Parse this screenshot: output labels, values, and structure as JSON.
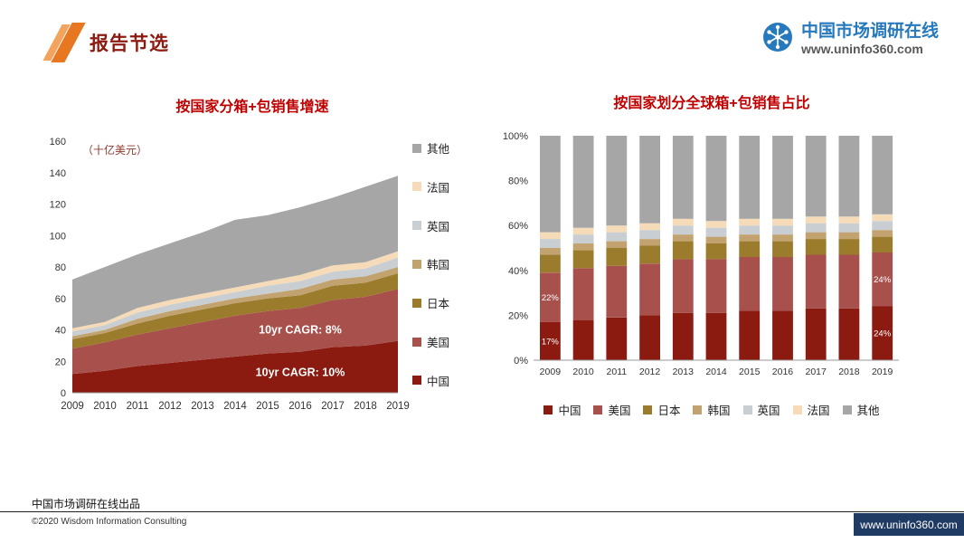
{
  "header": {
    "title": "报告节选",
    "logo_main": "中国市场调研在线",
    "logo_sub": "www.uninfo360.com"
  },
  "footer": {
    "line1": "中国市场调研在线出品",
    "line2": "©2020 Wisdom Information Consulting",
    "badge": "www.uninfo360.com"
  },
  "chart_data": [
    {
      "type": "area",
      "title": "按国家分箱+包销售增速",
      "unit_label": "（十亿美元）",
      "x": [
        "2009",
        "2010",
        "2011",
        "2012",
        "2013",
        "2014",
        "2015",
        "2016",
        "2017",
        "2018",
        "2019"
      ],
      "ylim": [
        0,
        160
      ],
      "yticks": [
        0,
        20,
        40,
        60,
        80,
        100,
        120,
        140,
        160
      ],
      "legend_position": "right",
      "grid": false,
      "series": [
        {
          "name": "中国",
          "color": "#8B1A10",
          "values": [
            12,
            14,
            17,
            19,
            21,
            23,
            25,
            26,
            29,
            30,
            33
          ]
        },
        {
          "name": "美国",
          "color": "#A8504C",
          "values": [
            16,
            18,
            20,
            22,
            24,
            26,
            27,
            28,
            30,
            31,
            33
          ]
        },
        {
          "name": "日本",
          "color": "#9B7B2C",
          "values": [
            6,
            6,
            7,
            8,
            8,
            8,
            8,
            8,
            9,
            9,
            10
          ]
        },
        {
          "name": "韩国",
          "color": "#C2A26F",
          "values": [
            2,
            2,
            3,
            3,
            3,
            3,
            3,
            4,
            4,
            4,
            4
          ]
        },
        {
          "name": "英国",
          "color": "#C8CED2",
          "values": [
            3,
            3,
            4,
            4,
            4,
            4,
            5,
            5,
            5,
            5,
            6
          ]
        },
        {
          "name": "法国",
          "color": "#F5DBB7",
          "values": [
            2,
            2,
            3,
            3,
            3,
            3,
            3,
            4,
            4,
            4,
            4
          ]
        },
        {
          "name": "其他",
          "color": "#A6A6A6",
          "values": [
            31,
            35,
            34,
            36,
            39,
            43,
            42,
            43,
            43,
            48,
            48
          ]
        }
      ],
      "annotations": [
        {
          "x": "2016",
          "series": "美国",
          "text": "10yr CAGR: 8%"
        },
        {
          "x": "2016",
          "series": "中国",
          "text": "10yr CAGR: 10%"
        }
      ]
    },
    {
      "type": "bar",
      "title": "按国家划分全球箱+包销售占比",
      "x": [
        "2009",
        "2010",
        "2011",
        "2012",
        "2013",
        "2014",
        "2015",
        "2016",
        "2017",
        "2018",
        "2019"
      ],
      "ylim": [
        0,
        100
      ],
      "yticks": [
        0,
        20,
        40,
        60,
        80,
        100
      ],
      "legend_position": "bottom",
      "grid": false,
      "stacked_percent": true,
      "series": [
        {
          "name": "中国",
          "color": "#8B1A10",
          "values": [
            17,
            18,
            19,
            20,
            21,
            21,
            22,
            22,
            23,
            23,
            24
          ]
        },
        {
          "name": "美国",
          "color": "#A8504C",
          "values": [
            22,
            23,
            23,
            23,
            24,
            24,
            24,
            24,
            24,
            24,
            24
          ]
        },
        {
          "name": "日本",
          "color": "#9B7B2C",
          "values": [
            8,
            8,
            8,
            8,
            8,
            7,
            7,
            7,
            7,
            7,
            7
          ]
        },
        {
          "name": "韩国",
          "color": "#C2A26F",
          "values": [
            3,
            3,
            3,
            3,
            3,
            3,
            3,
            3,
            3,
            3,
            3
          ]
        },
        {
          "name": "英国",
          "color": "#C8CED2",
          "values": [
            4,
            4,
            4,
            4,
            4,
            4,
            4,
            4,
            4,
            4,
            4
          ]
        },
        {
          "name": "法国",
          "color": "#F5DBB7",
          "values": [
            3,
            3,
            3,
            3,
            3,
            3,
            3,
            3,
            3,
            3,
            3
          ]
        },
        {
          "name": "其他",
          "color": "#A6A6A6",
          "values": [
            43,
            41,
            40,
            39,
            37,
            38,
            37,
            37,
            36,
            36,
            35
          ]
        }
      ],
      "annotations": [
        {
          "x": "2009",
          "series": "中国",
          "text": "17%"
        },
        {
          "x": "2009",
          "series": "美国",
          "text": "22%"
        },
        {
          "x": "2019",
          "series": "中国",
          "text": "24%"
        },
        {
          "x": "2019",
          "series": "美国",
          "text": "24%"
        }
      ]
    }
  ]
}
